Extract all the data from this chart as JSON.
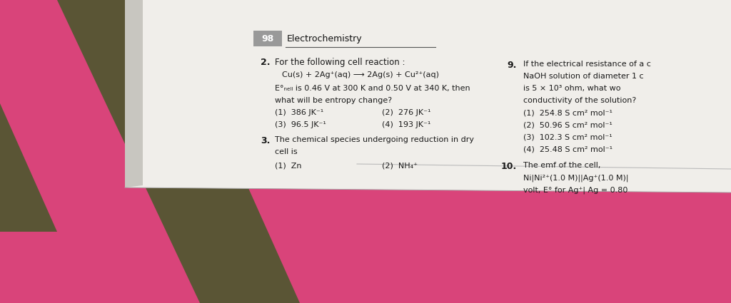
{
  "header_num": "98",
  "header_text": "Electrochemistry",
  "q2_label": "2.",
  "q2_intro": "For the following cell reaction :",
  "q2_reaction": "Cu(s) + 2Ag⁺(aq) ⟶ 2Ag(s) + Cu²⁺(aq)",
  "q2_ecell": "E°ₙₑₗₗ is 0.46 V at 300 K and 0.50 V at 340 K, then",
  "q2_question": "what will be entropy change?",
  "q2_opts": [
    "(1)  386 JK⁻¹",
    "(2)  276 JK⁻¹",
    "(3)  96.5 JK⁻¹",
    "(4)  193 JK⁻¹"
  ],
  "q3_label": "3.",
  "q3_text": "The chemical species undergoing reduction in dry",
  "q3_text2": "cell is",
  "q3_opt1": "(1)  Zn",
  "q3_opt2": "(2)  NH₄⁺",
  "q9_label": "9.",
  "q9_text1": "If the electrical resistance of a c",
  "q9_text2": "NaOH solution of diameter 1 c",
  "q9_text3": "is 5 × 10³ ohm, what wo",
  "q9_text4": "conductivity of the solution?",
  "q9_opts": [
    "(1)  254.8 S cm² mol⁻¹",
    "(2)  50.96 S cm² mol⁻¹",
    "(3)  102.3 S cm² mol⁻¹",
    "(4)  25.48 S cm² mol⁻¹"
  ],
  "q10_label": "10.",
  "q10_text": "The emf of the cell,",
  "q10_text2": "Ni|Ni²⁺(1.0 M)||Ag⁺(1.0 M)|",
  "q10_text3": "volt, E° for Ag⁺| Ag = 0.80",
  "pink_color": "#d9447a",
  "olive_color": "#5a5535",
  "tan_color": "#c8b882",
  "green_color": "#6b7a4a",
  "page_color": "#f0eeea",
  "page_shadow": "#dddbd6",
  "header_box_color": "#888888",
  "text_color": "#1a1a1a",
  "line_color": "#aaaaaa"
}
